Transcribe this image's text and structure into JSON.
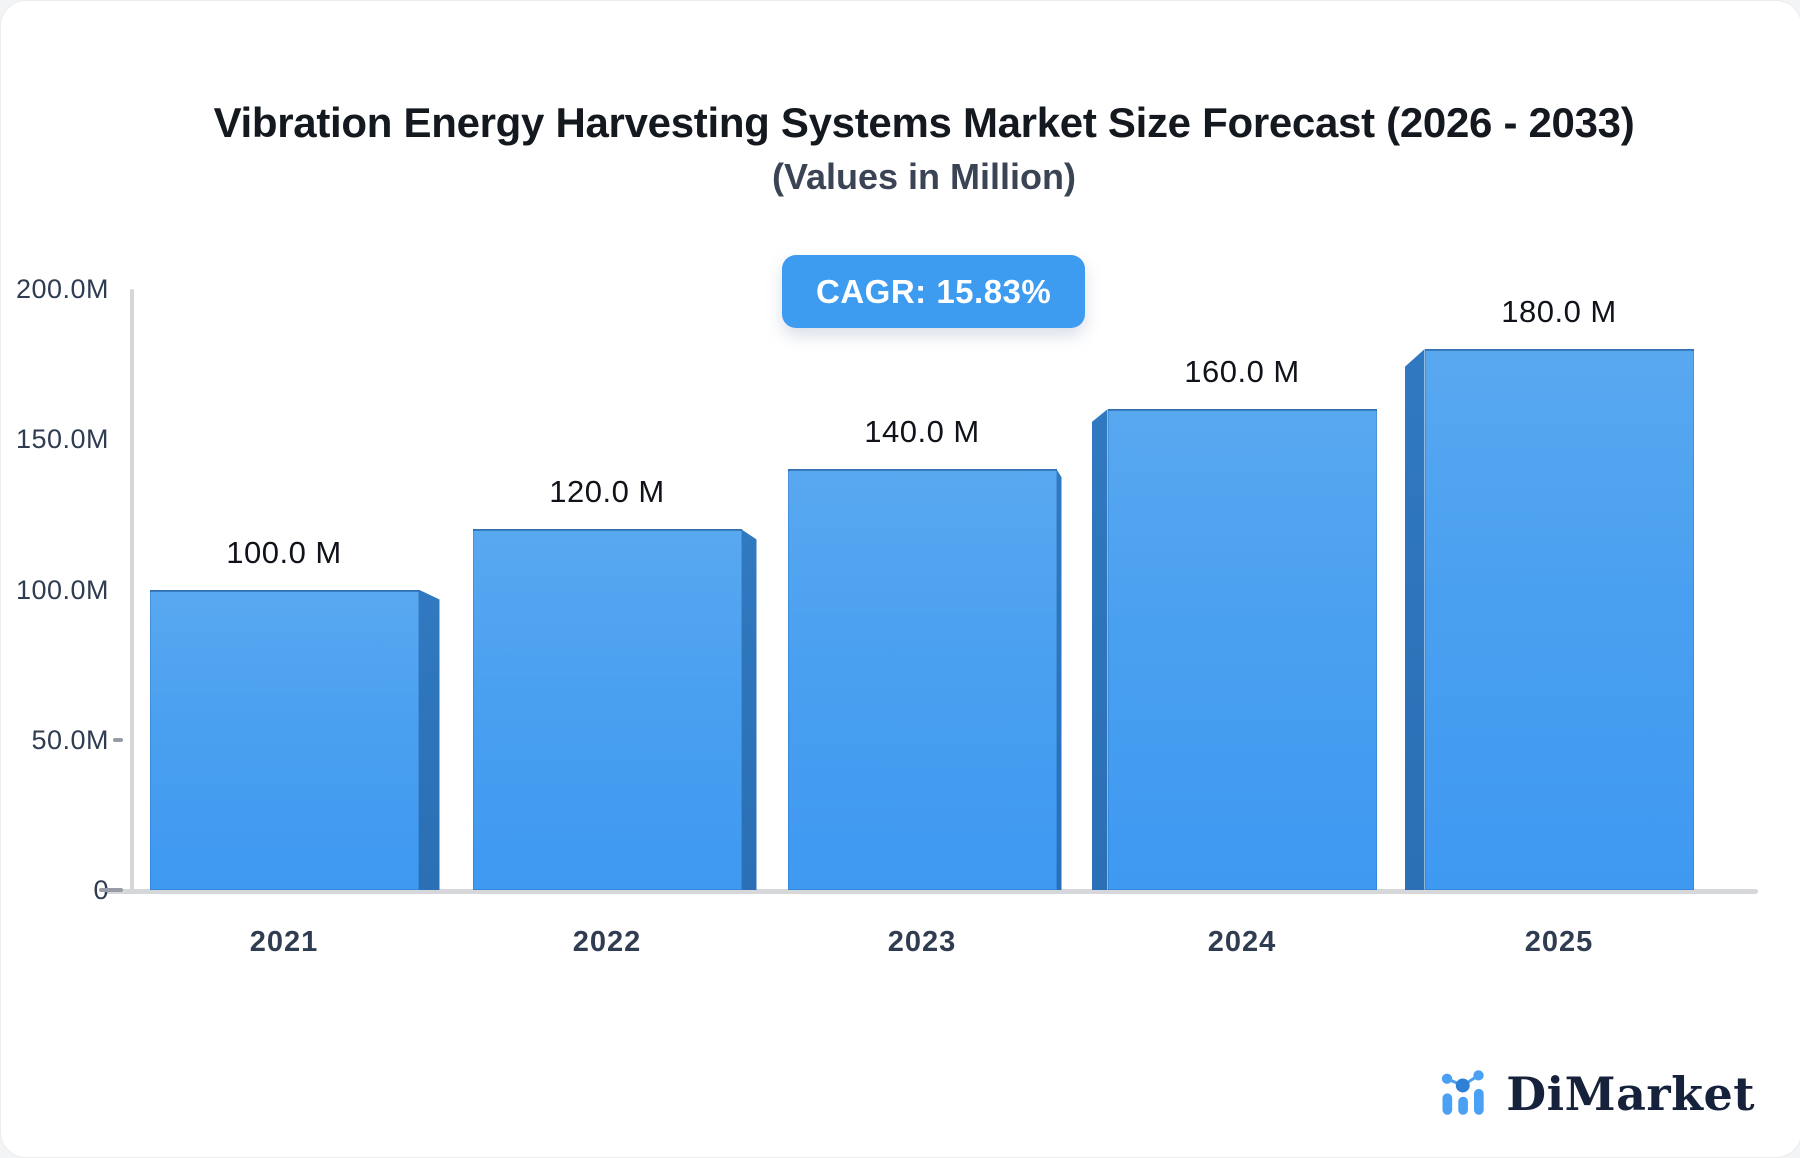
{
  "header": {
    "title": "Vibration Energy Harvesting Systems Market Size Forecast (2026 - 2033)",
    "subtitle": "(Values in Million)",
    "cagr_badge": "CAGR: 15.83%"
  },
  "chart_data": {
    "type": "bar",
    "title": "Vibration Energy Harvesting Systems Market Size Forecast (2026 - 2033)",
    "subtitle": "(Values in Million)",
    "unit": "Million",
    "cagr_percent": "15.83%",
    "categories": [
      "2021",
      "2022",
      "2023",
      "2024",
      "2025"
    ],
    "values": [
      100,
      120,
      140,
      160,
      180
    ],
    "value_labels": [
      "100.0 M",
      "120.0 M",
      "140.0 M",
      "160.0 M",
      "180.0 M"
    ],
    "ylim": [
      0,
      200
    ],
    "yticks": [
      {
        "value": 200,
        "label": "200.0M"
      },
      {
        "value": 150,
        "label": "150.0M"
      },
      {
        "value": 100,
        "label": "100.0M"
      },
      {
        "value": 50,
        "label": "50.0M"
      },
      {
        "value": 0,
        "label": "0"
      }
    ],
    "grid": false,
    "legend": false,
    "bar_color": "#459ff1",
    "bar_side_color": "#2e76bc"
  },
  "logo": {
    "text": "DiMarket",
    "icon": "mini-bar-chart-icon"
  },
  "colors": {
    "badge_bg": "#3d9bf0",
    "badge_text": "#ffffff",
    "axis_line": "#d6d7db",
    "tick_label": "#2f3c52",
    "value_label": "#10131a",
    "title": "#14181f",
    "subtitle": "#3b4454",
    "logo_navy": "#16223c",
    "logo_blue": "#4aa0f2"
  }
}
